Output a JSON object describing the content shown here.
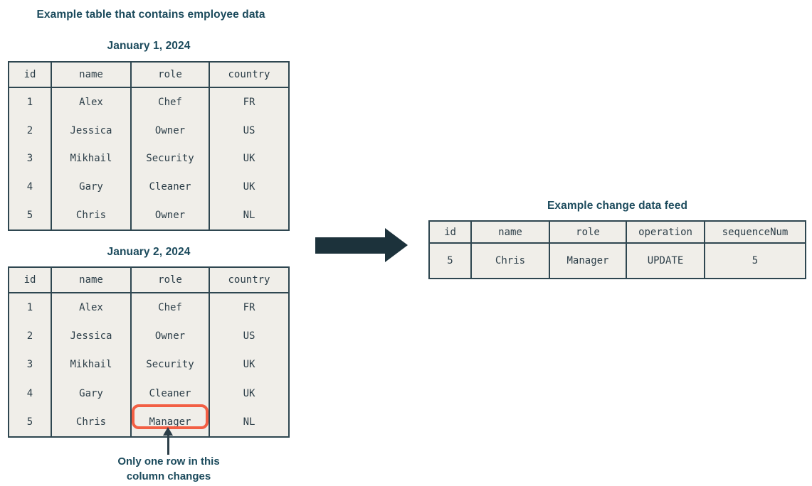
{
  "page": {
    "title": "Example table that contains employee data"
  },
  "left": {
    "table_jan1": {
      "title": "January 1, 2024",
      "headers": [
        "id",
        "name",
        "role",
        "country"
      ],
      "rows": [
        [
          "1",
          "Alex",
          "Chef",
          "FR"
        ],
        [
          "2",
          "Jessica",
          "Owner",
          "US"
        ],
        [
          "3",
          "Mikhail",
          "Security",
          "UK"
        ],
        [
          "4",
          "Gary",
          "Cleaner",
          "UK"
        ],
        [
          "5",
          "Chris",
          "Owner",
          "NL"
        ]
      ]
    },
    "table_jan2": {
      "title": "January 2, 2024",
      "headers": [
        "id",
        "name",
        "role",
        "country"
      ],
      "rows": [
        [
          "1",
          "Alex",
          "Chef",
          "FR"
        ],
        [
          "2",
          "Jessica",
          "Owner",
          "US"
        ],
        [
          "3",
          "Mikhail",
          "Security",
          "UK"
        ],
        [
          "4",
          "Gary",
          "Cleaner",
          "UK"
        ],
        [
          "5",
          "Chris",
          "Manager",
          "NL"
        ]
      ],
      "highlighted_cell": {
        "row_id": "5",
        "column": "role",
        "value": "Manager"
      }
    },
    "annotation": {
      "line1": "Only one row in this",
      "line2": "column changes"
    }
  },
  "right": {
    "change_feed": {
      "title": "Example change data feed",
      "headers": [
        "id",
        "name",
        "role",
        "operation",
        "sequenceNum"
      ],
      "rows": [
        [
          "5",
          "Chris",
          "Manager",
          "UPDATE",
          "5"
        ]
      ]
    }
  },
  "icons": {
    "big_arrow": "right-arrow",
    "annotation_arrow": "up-arrow"
  },
  "colors": {
    "title_text": "#1B4A5C",
    "table_text": "#2C3E48",
    "table_border": "#2E4650",
    "table_background": "#F0EEE9",
    "highlight": "#F25F44",
    "arrow": "#1C323B",
    "background": "#FFFFFF"
  }
}
